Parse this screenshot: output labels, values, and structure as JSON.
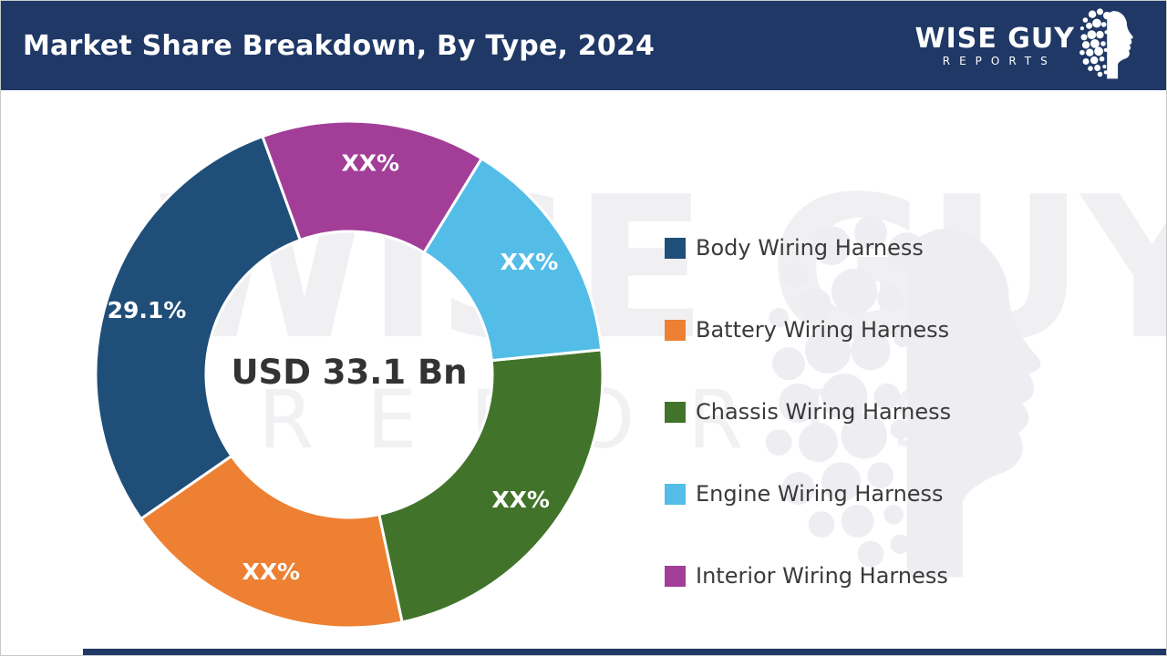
{
  "header": {
    "title": "Market Share Breakdown, By Type, 2024",
    "bg_color": "#1F3866",
    "logo": {
      "line1": "WISE GUY",
      "line2": "REPORTS"
    }
  },
  "watermark": {
    "line1": "WISE GUY",
    "line2": "REPORTS"
  },
  "chart_data": {
    "type": "donut",
    "title": "Market Share Breakdown, By Type, 2024",
    "center_label": "USD 33.1 Bn",
    "start_angle_deg": 110,
    "direction": "counterclockwise",
    "outer_radius_px": 278,
    "inner_radius_px": 157,
    "label_radius_px": 233,
    "legend_position": "right",
    "segments": [
      {
        "name": "Body Wiring Harness",
        "value_pct": 29.1,
        "display_label": "29.1%",
        "color": "#1F4E79"
      },
      {
        "name": "Battery Wiring Harness",
        "value_pct": 18.7,
        "display_label": "XX%",
        "color": "#ED8032"
      },
      {
        "name": "Chassis Wiring Harness",
        "value_pct": 23.2,
        "display_label": "XX%",
        "color": "#41742A"
      },
      {
        "name": "Engine Wiring Harness",
        "value_pct": 14.7,
        "display_label": "XX%",
        "color": "#53BDE8"
      },
      {
        "name": "Interior Wiring Harness",
        "value_pct": 14.3,
        "display_label": "XX%",
        "color": "#A23E98"
      }
    ]
  }
}
